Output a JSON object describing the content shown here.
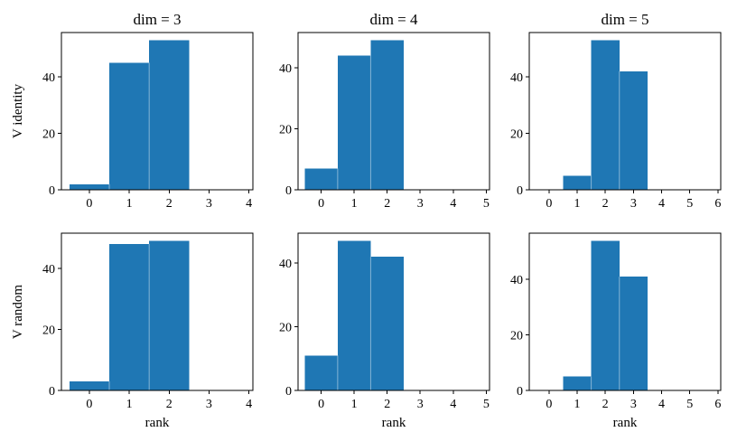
{
  "figure": {
    "background": "#ffffff",
    "bar_color": "#1f77b4",
    "axis_color": "#000000",
    "col_titles": [
      "dim = 3",
      "dim = 4",
      "dim = 5"
    ],
    "row_labels": [
      "V identity",
      "V random"
    ],
    "xlabel": "rank"
  },
  "chart_data": [
    {
      "type": "bar",
      "row": 0,
      "col": 0,
      "title": "dim = 3",
      "ylabel": "V identity",
      "xlabel": "",
      "x": [
        0,
        1,
        2
      ],
      "values": [
        2,
        45,
        53
      ],
      "bar_width": 1,
      "xticks": [
        0,
        1,
        2,
        3,
        4
      ],
      "yticks": [
        0,
        20,
        40
      ],
      "xlim": [
        -0.7,
        4.1
      ],
      "ylim": [
        0,
        55.7
      ]
    },
    {
      "type": "bar",
      "row": 0,
      "col": 1,
      "title": "dim = 4",
      "ylabel": "",
      "xlabel": "",
      "x": [
        0,
        1,
        2
      ],
      "values": [
        7,
        44,
        49
      ],
      "bar_width": 1,
      "xticks": [
        0,
        1,
        2,
        3,
        4,
        5
      ],
      "yticks": [
        0,
        20,
        40
      ],
      "xlim": [
        -0.7,
        5.1
      ],
      "ylim": [
        0,
        51.5
      ]
    },
    {
      "type": "bar",
      "row": 0,
      "col": 2,
      "title": "dim = 5",
      "ylabel": "",
      "xlabel": "",
      "x": [
        1,
        2,
        3
      ],
      "values": [
        5,
        53,
        42
      ],
      "bar_width": 1,
      "xticks": [
        0,
        1,
        2,
        3,
        4,
        5,
        6
      ],
      "yticks": [
        0,
        20,
        40
      ],
      "xlim": [
        -0.7,
        6.1
      ],
      "ylim": [
        0,
        55.7
      ]
    },
    {
      "type": "bar",
      "row": 1,
      "col": 0,
      "title": "",
      "ylabel": "V random",
      "xlabel": "rank",
      "x": [
        0,
        1,
        2
      ],
      "values": [
        3,
        48,
        49
      ],
      "bar_width": 1,
      "xticks": [
        0,
        1,
        2,
        3,
        4
      ],
      "yticks": [
        0,
        20,
        40
      ],
      "xlim": [
        -0.7,
        4.1
      ],
      "ylim": [
        0,
        51.5
      ]
    },
    {
      "type": "bar",
      "row": 1,
      "col": 1,
      "title": "",
      "ylabel": "",
      "xlabel": "rank",
      "x": [
        0,
        1,
        2
      ],
      "values": [
        11,
        47,
        42
      ],
      "bar_width": 1,
      "xticks": [
        0,
        1,
        2,
        3,
        4,
        5
      ],
      "yticks": [
        0,
        20,
        40
      ],
      "xlim": [
        -0.7,
        5.1
      ],
      "ylim": [
        0,
        49.4
      ]
    },
    {
      "type": "bar",
      "row": 1,
      "col": 2,
      "title": "",
      "ylabel": "",
      "xlabel": "rank",
      "x": [
        1,
        2,
        3
      ],
      "values": [
        5,
        54,
        41
      ],
      "bar_width": 1,
      "xticks": [
        0,
        1,
        2,
        3,
        4,
        5,
        6
      ],
      "yticks": [
        0,
        20,
        40
      ],
      "xlim": [
        -0.7,
        6.1
      ],
      "ylim": [
        0,
        56.7
      ]
    }
  ]
}
